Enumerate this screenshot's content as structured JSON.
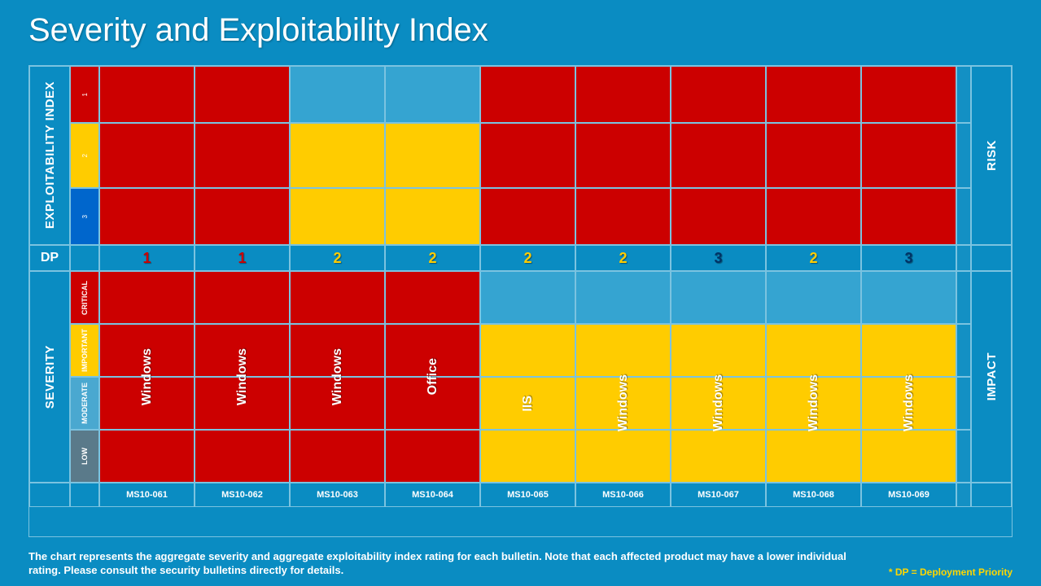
{
  "title": "Severity and Exploitability Index",
  "colors": {
    "bg": "#0a8cc2",
    "light": "#35a4d1",
    "border": "#7bc3e0",
    "red": "#cc0000",
    "yellow": "#ffcc00",
    "blue": "#0066cc",
    "slate": "#5a7a8a",
    "paleBlue": "#4aa8d0",
    "dpText1": "#cc0000",
    "dpText2": "#ffcc00",
    "dpText3": "#003366"
  },
  "left": {
    "exploitLabel": "Exploitability Index",
    "dpLabel": "DP",
    "severityLabel": "Severity"
  },
  "right": {
    "risk": "RISK",
    "impact": "IMPACT"
  },
  "exploitRows": [
    {
      "key": "1",
      "color": "#cc0000"
    },
    {
      "key": "2",
      "color": "#ffcc00"
    },
    {
      "key": "3",
      "color": "#0066cc"
    }
  ],
  "severityRows": [
    {
      "key": "Critical",
      "color": "#cc0000"
    },
    {
      "key": "Important",
      "color": "#ffcc00"
    },
    {
      "key": "Moderate",
      "color": "#4aa8d0"
    },
    {
      "key": "Low",
      "color": "#5a7a8a"
    }
  ],
  "bulletins": [
    {
      "id": "MS10-061",
      "dp": 1,
      "exploitTop": 1,
      "exploitColor": "#cc0000",
      "sevTop": 1,
      "sevColor": "#cc0000",
      "product": "Windows"
    },
    {
      "id": "MS10-062",
      "dp": 1,
      "exploitTop": 1,
      "exploitColor": "#cc0000",
      "sevTop": 1,
      "sevColor": "#cc0000",
      "product": "Windows"
    },
    {
      "id": "MS10-063",
      "dp": 2,
      "exploitTop": 2,
      "exploitColor": "#ffcc00",
      "sevTop": 1,
      "sevColor": "#cc0000",
      "product": "Windows"
    },
    {
      "id": "MS10-064",
      "dp": 2,
      "exploitTop": 2,
      "exploitColor": "#ffcc00",
      "sevTop": 1,
      "sevColor": "#cc0000",
      "product": "Office"
    },
    {
      "id": "MS10-065",
      "dp": 2,
      "exploitTop": 1,
      "exploitColor": "#cc0000",
      "sevTop": 2,
      "sevColor": "#ffcc00",
      "product": "IIS"
    },
    {
      "id": "MS10-066",
      "dp": 2,
      "exploitTop": 1,
      "exploitColor": "#cc0000",
      "sevTop": 2,
      "sevColor": "#ffcc00",
      "product": "Windows"
    },
    {
      "id": "MS10-067",
      "dp": 3,
      "exploitTop": 1,
      "exploitColor": "#cc0000",
      "sevTop": 2,
      "sevColor": "#ffcc00",
      "product": "Windows"
    },
    {
      "id": "MS10-068",
      "dp": 2,
      "exploitTop": 1,
      "exploitColor": "#cc0000",
      "sevTop": 2,
      "sevColor": "#ffcc00",
      "product": "Windows"
    },
    {
      "id": "MS10-069",
      "dp": 3,
      "exploitTop": 1,
      "exploitColor": "#cc0000",
      "sevTop": 2,
      "sevColor": "#ffcc00",
      "product": "Windows"
    }
  ],
  "footnote": "The chart represents the aggregate severity and aggregate exploitability index rating for each bulletin. Note that each affected product may have a lower individual rating. Please consult the security bulletins directly for details.",
  "dpNote": "* DP = Deployment Priority"
}
